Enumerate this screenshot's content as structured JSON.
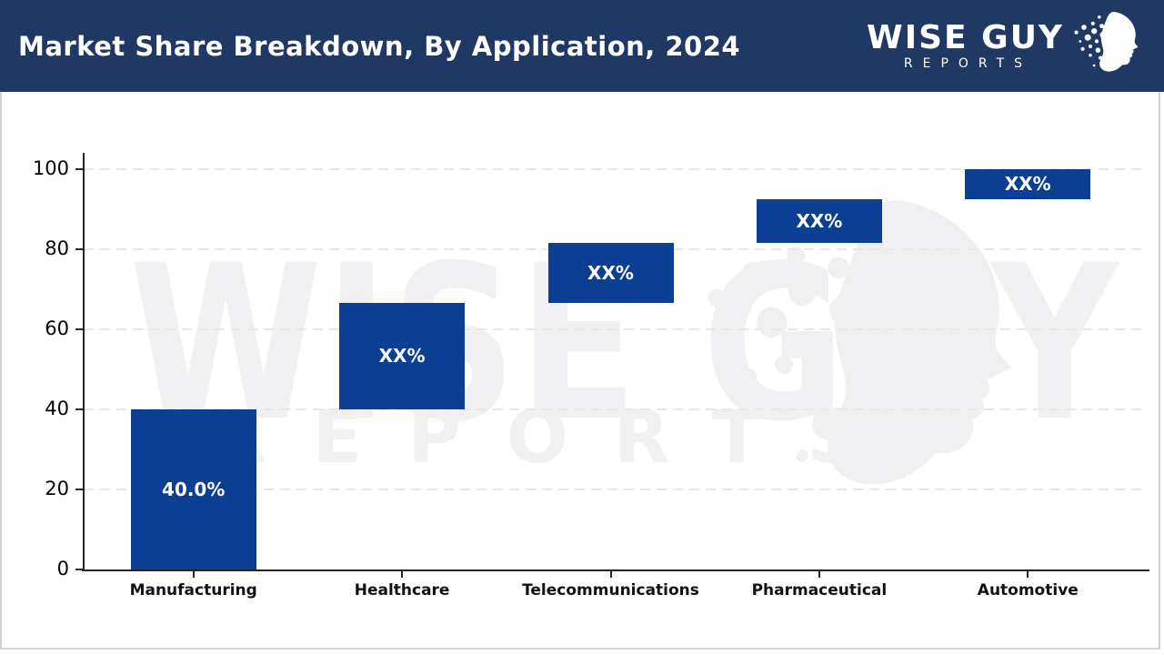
{
  "header": {
    "title": "Market Share Breakdown, By Application, 2024",
    "logo": {
      "line1": "WISE GUY",
      "line2": "REPORTS",
      "icon": "dotted-head-icon"
    }
  },
  "watermark": {
    "line1": "WISE GUY",
    "line2": "REPORTS"
  },
  "chart_data": {
    "type": "bar",
    "variant": "waterfall",
    "title": "Market Share Breakdown, By Application, 2024",
    "categories": [
      "Manufacturing",
      "Healthcare",
      "Telecommunications",
      "Pharmaceutical",
      "Automotive"
    ],
    "bars": [
      {
        "category": "Manufacturing",
        "start": 0,
        "end": 40,
        "value": 40,
        "label": "40.0%"
      },
      {
        "category": "Healthcare",
        "start": 40,
        "end": 66.5,
        "value": 26.5,
        "label": "XX%"
      },
      {
        "category": "Telecommunications",
        "start": 66.5,
        "end": 81.5,
        "value": 15,
        "label": "XX%"
      },
      {
        "category": "Pharmaceutical",
        "start": 81.5,
        "end": 92.5,
        "value": 11,
        "label": "XX%"
      },
      {
        "category": "Automotive",
        "start": 92.5,
        "end": 100,
        "value": 7.5,
        "label": "XX%"
      }
    ],
    "xlabel": "",
    "ylabel": "",
    "yticks": [
      0,
      20,
      40,
      60,
      80,
      100
    ],
    "ylim": [
      0,
      105
    ],
    "grid": "horizontal-dashed",
    "legend": "none",
    "colors": {
      "bar": "#0c3e93",
      "bar_label": "#ffffff",
      "axis": "#262626",
      "grid": "#e8e8e8"
    }
  },
  "colors": {
    "header_bg": "#203864",
    "page_bg": "#ffffff",
    "watermark": "#f1f1f3",
    "frame": "#d2d2d2"
  }
}
